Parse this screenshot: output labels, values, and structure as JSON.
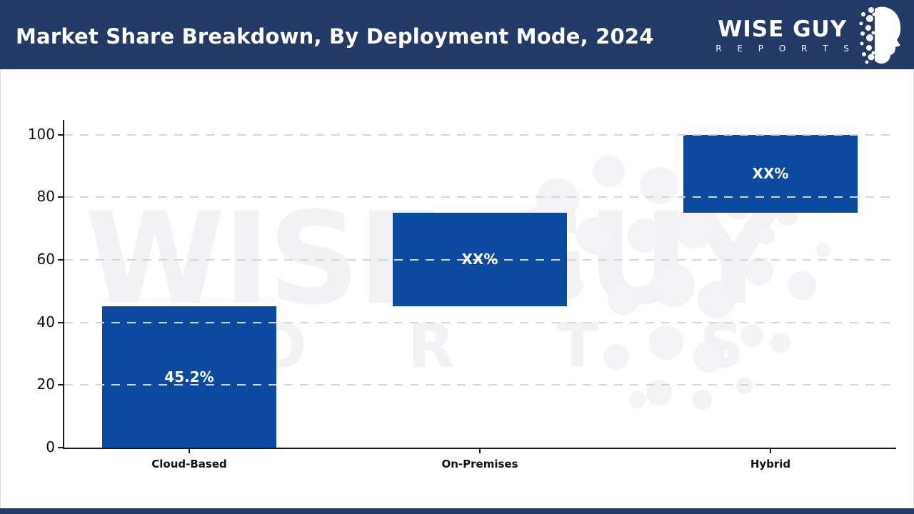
{
  "header": {
    "title": "Market Share Breakdown, By Deployment Mode, 2024",
    "logo": {
      "line1": "WISE GUY",
      "line2": "R E P O R T S"
    }
  },
  "watermark": {
    "line1": "WISE GUY",
    "line2": "P O R T S"
  },
  "colors": {
    "header_bg": "#233a66",
    "footer_bg": "#233a66",
    "bar": "#0b4a9e",
    "grid": "#d6d6d6",
    "axis": "#1a1a1a",
    "watermark": "#f2f2f4",
    "value_label": "#ffffff"
  },
  "chart_data": {
    "type": "bar",
    "subtype": "waterfall",
    "title": "Market Share Breakdown, By Deployment Mode, 2024",
    "categories": [
      "Cloud-Based",
      "On-Premises",
      "Hybrid"
    ],
    "segments": [
      {
        "category": "Cloud-Based",
        "start": 0,
        "end": 45.2,
        "label": "45.2%"
      },
      {
        "category": "On-Premises",
        "start": 45.2,
        "end": 75,
        "label": "XX%"
      },
      {
        "category": "Hybrid",
        "start": 75,
        "end": 100,
        "label": "XX%"
      }
    ],
    "xlabel": "",
    "ylabel": "",
    "ylim": [
      0,
      100
    ],
    "yticks": [
      0,
      20,
      40,
      60,
      80,
      100
    ],
    "grid": "horizontal-dashed",
    "legend": "none",
    "bar_color": "#0b4a9e"
  }
}
